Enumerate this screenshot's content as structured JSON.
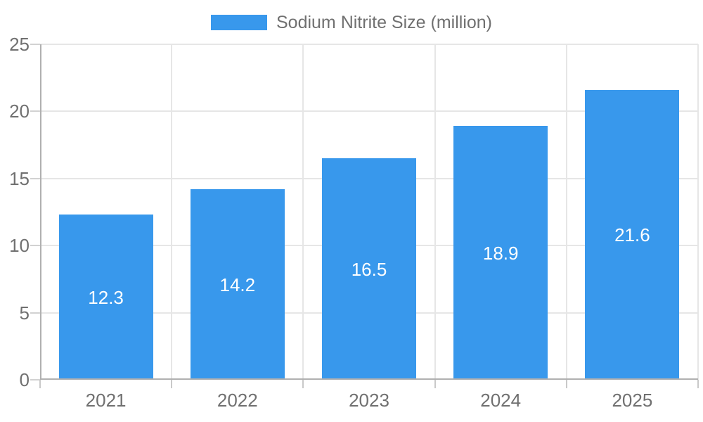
{
  "chart_data": {
    "type": "bar",
    "title": "",
    "categories": [
      "2021",
      "2022",
      "2023",
      "2024",
      "2025"
    ],
    "series": [
      {
        "name": "Sodium Nitrite Size (million)",
        "values": [
          12.3,
          14.2,
          16.5,
          18.9,
          21.6
        ]
      }
    ],
    "value_labels": [
      "12.3",
      "14.2",
      "16.5",
      "18.9",
      "21.6"
    ],
    "xlabel": "",
    "ylabel": "",
    "ylim": [
      0,
      25
    ],
    "yticks": [
      0,
      5,
      10,
      15,
      20,
      25
    ],
    "grid": true,
    "legend_position": "top-center",
    "colors": {
      "bar": "#3898ec",
      "value_label": "#ffffff",
      "grid": "#e6e6e6",
      "axis": "#b0b0b0",
      "tick": "#c9c9c9",
      "text": "#707070"
    }
  }
}
